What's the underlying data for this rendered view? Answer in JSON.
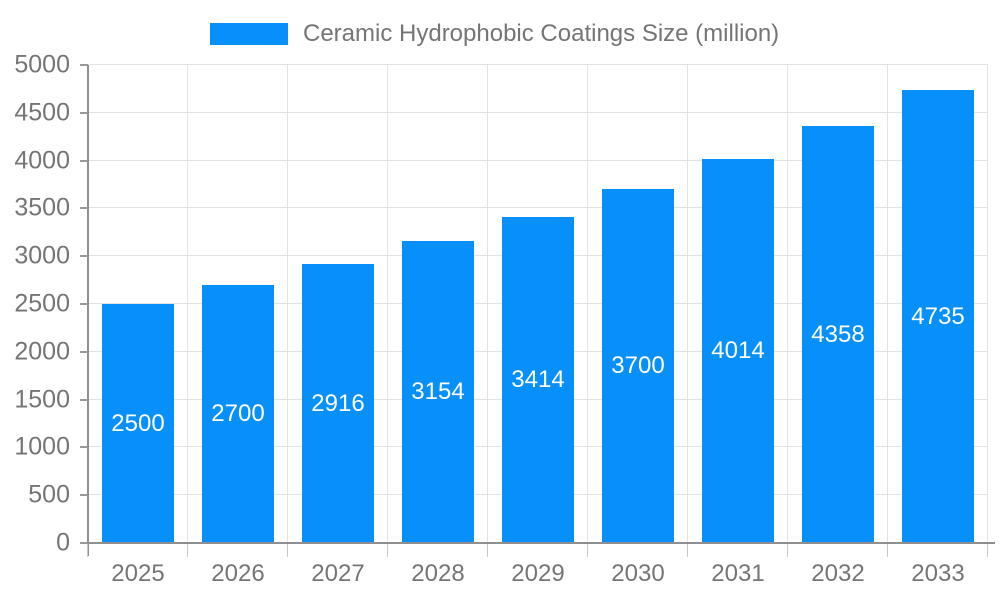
{
  "legend": {
    "label": "Ceramic Hydrophobic Coatings Size (million)"
  },
  "chart_data": {
    "type": "bar",
    "title": "Ceramic Hydrophobic Coatings Size (million)",
    "series_name": "Ceramic Hydrophobic Coatings Size (million)",
    "categories": [
      "2025",
      "2026",
      "2027",
      "2028",
      "2029",
      "2030",
      "2031",
      "2032",
      "2033"
    ],
    "values": [
      2500,
      2700,
      2916,
      3154,
      3414,
      3700,
      4014,
      4358,
      4735
    ],
    "xlabel": "",
    "ylabel": "",
    "ylim": [
      0,
      5000
    ],
    "ytick_interval": 500,
    "yticks": [
      0,
      500,
      1000,
      1500,
      2000,
      2500,
      3000,
      3500,
      4000,
      4500,
      5000
    ],
    "grid": true,
    "legend_position": "top",
    "value_labels": "inside-center",
    "colors": {
      "bar": "#0890fa",
      "bar_value_label": "#ffffff",
      "axis_text": "#757575",
      "gridline": "#e3e3e3",
      "axis_line": "#8f8f8f"
    }
  }
}
